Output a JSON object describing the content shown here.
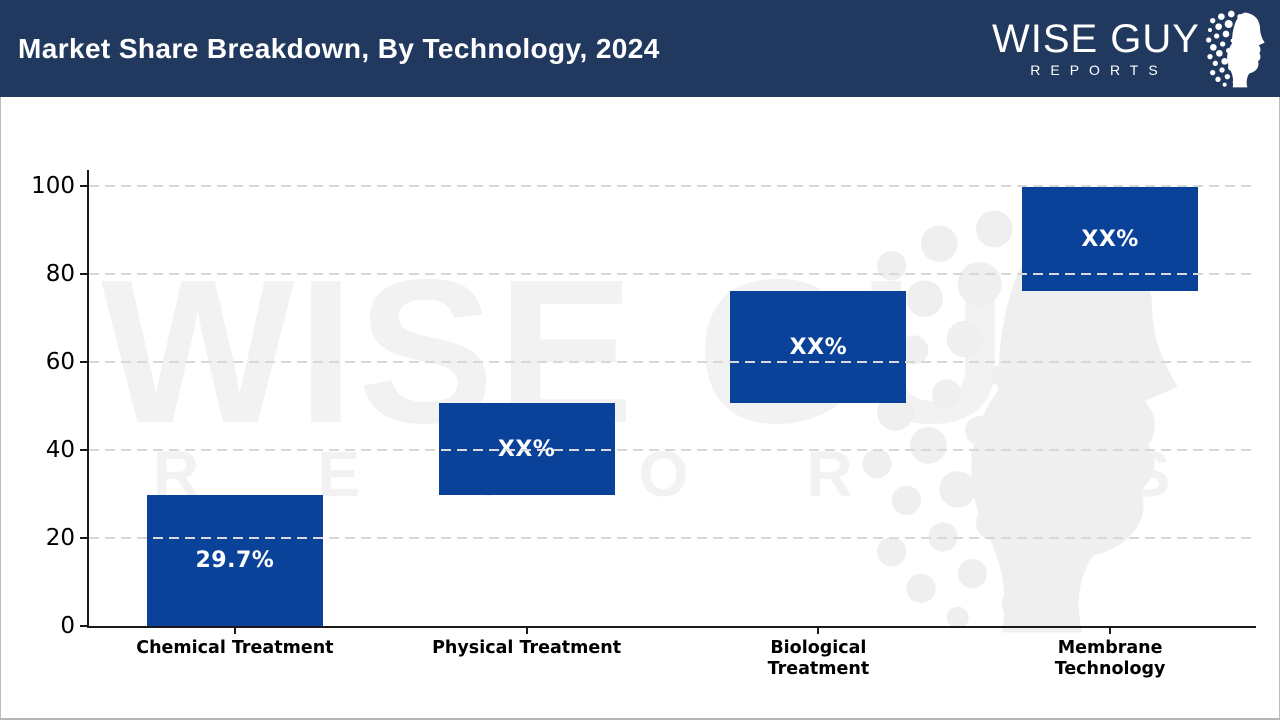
{
  "page": {
    "background": "#ffffff",
    "edge_border_color": "#bdbdbd"
  },
  "header": {
    "title": "Market Share Breakdown, By Technology, 2024",
    "bg_color": "#22395f",
    "text_color": "#ffffff",
    "logo": {
      "line1": "WISE GUY",
      "line2": "REPORTS"
    }
  },
  "watermark": {
    "line1": "WISE GUY",
    "line2": "REPORTS"
  },
  "chart_data": {
    "type": "bar",
    "subtype": "floating-waterfall",
    "title": "Market Share Breakdown, By Technology, 2024",
    "categories": [
      "Chemical Treatment",
      "Physical Treatment",
      "Biological\nTreatment",
      "Membrane\nTechnology"
    ],
    "series": [
      {
        "category": "Chemical Treatment",
        "start": 0,
        "end": 29.7,
        "label": "29.7%"
      },
      {
        "category": "Physical Treatment",
        "start": 29.7,
        "end": 50.7,
        "label": "XX%"
      },
      {
        "category": "Biological Treatment",
        "start": 50.7,
        "end": 76.1,
        "label": "XX%"
      },
      {
        "category": "Membrane Technology",
        "start": 76.1,
        "end": 99.8,
        "label": "XX%"
      }
    ],
    "ylim": [
      0,
      100
    ],
    "yticks": [
      0,
      20,
      40,
      60,
      80,
      100
    ],
    "grid": true,
    "gridline_style": "dashed",
    "legend": false,
    "bar_color": "#0a4199",
    "bar_label_color": "#ffffff",
    "gridline_color": "#d8d8d8",
    "axis_color": "#1a1a1a",
    "tick_label_color": "#000000"
  }
}
